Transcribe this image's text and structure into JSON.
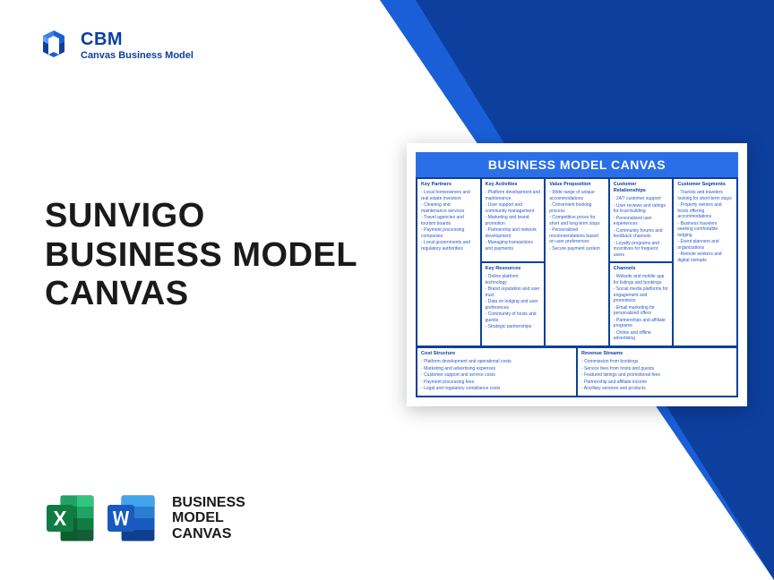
{
  "brand": {
    "name": "CBM",
    "subtitle": "Canvas Business Model"
  },
  "title": {
    "line1": "SUNVIGO",
    "line2": "BUSINESS MODEL",
    "line3": "CANVAS"
  },
  "footer": {
    "line1": "BUSINESS",
    "line2": "MODEL",
    "line3": "CANVAS"
  },
  "canvas": {
    "header": "BUSINESS MODEL CANVAS",
    "cells": {
      "keyPartners": {
        "title": "Key Partners",
        "items": [
          "Local homeowners and real estate investors",
          "Cleaning and maintenance services",
          "Travel agencies and tourism boards",
          "Payment processing companies",
          "Local governments and regulatory authorities"
        ]
      },
      "keyActivities": {
        "title": "Key Activities",
        "items": [
          "Platform development and maintenance",
          "User support and community management",
          "Marketing and brand promotion",
          "Partnership and network development",
          "Managing transactions and payments"
        ]
      },
      "keyResources": {
        "title": "Key Resources",
        "items": [
          "Online platform technology",
          "Brand reputation and user trust",
          "Data on lodging and user preferences",
          "Community of hosts and guests",
          "Strategic partnerships"
        ]
      },
      "valueProposition": {
        "title": "Value Proposition",
        "items": [
          "Wide range of unique accommodations",
          "Convenient booking process",
          "Competitive prices for short and long-term stays",
          "Personalized recommendations based on user preferences",
          "Secure payment system"
        ]
      },
      "customerRelationships": {
        "title": "Customer Relationships",
        "items": [
          "24/7 customer support",
          "User reviews and ratings for trust-building",
          "Personalized user experiences",
          "Community forums and feedback channels",
          "Loyalty programs and incentives for frequent users"
        ]
      },
      "channels": {
        "title": "Channels",
        "items": [
          "Website and mobile app for listings and bookings",
          "Social media platforms for engagement and promotions",
          "Email marketing for personalized offers",
          "Partnerships and affiliate programs",
          "Online and offline advertising"
        ]
      },
      "customerSegments": {
        "title": "Customer Segments",
        "items": [
          "Tourists and travelers looking for short-term stays",
          "Property owners and hosts offering accommodations",
          "Business travelers seeking comfortable lodging",
          "Event planners and organizations",
          "Remote workers and digital nomads"
        ]
      },
      "costStructure": {
        "title": "Cost Structure",
        "items": [
          "Platform development and operational costs",
          "Marketing and advertising expenses",
          "Customer support and service costs",
          "Payment processing fees",
          "Legal and regulatory compliance costs"
        ]
      },
      "revenueStreams": {
        "title": "Revenue Streams",
        "items": [
          "Commission from bookings",
          "Service fees from hosts and guests",
          "Featured listings and promotional fees",
          "Partnership and affiliate income",
          "Ancillary services and products"
        ]
      }
    }
  },
  "colors": {
    "primary": "#1a5fd8",
    "dark": "#0d3f9e",
    "excel": "#107c41",
    "word": "#185abd"
  }
}
